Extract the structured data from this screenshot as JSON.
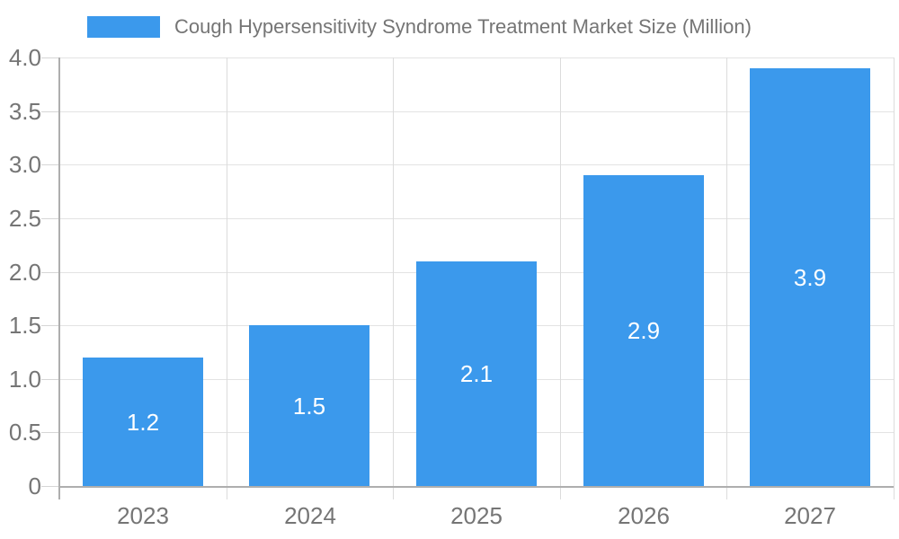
{
  "chart_data": {
    "type": "bar",
    "title": "Cough Hypersensitivity Syndrome Treatment Market Size (Million)",
    "categories": [
      "2023",
      "2024",
      "2025",
      "2026",
      "2027"
    ],
    "values": [
      1.2,
      1.5,
      2.1,
      2.9,
      3.9
    ],
    "bar_labels": [
      "1.2",
      "1.5",
      "2.1",
      "2.9",
      "3.9"
    ],
    "xlabel": "",
    "ylabel": "",
    "ylim": [
      0,
      4.0
    ],
    "y_tick_step": 0.5,
    "y_tick_labels": [
      "0",
      "0.5",
      "1.0",
      "1.5",
      "2.0",
      "2.5",
      "3.0",
      "3.5",
      "4.0"
    ],
    "grid": true,
    "legend_position": "top-left",
    "colors": {
      "bar": "#3b99ec",
      "grid_h": "#e3e3e3",
      "grid_v": "#dcdcdc",
      "tick": "#d6d6d6",
      "axis": "#aeaeae",
      "text": "#757575",
      "bar_label": "#ffffff",
      "background": "#ffffff"
    }
  }
}
